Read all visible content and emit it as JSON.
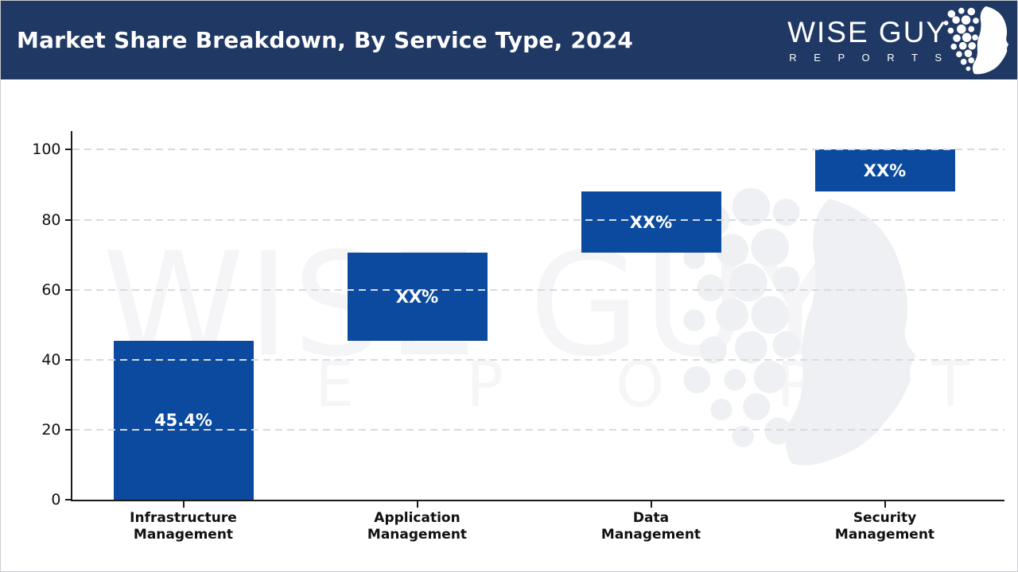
{
  "header": {
    "title": "Market Share Breakdown, By Service Type, 2024",
    "brand": {
      "name": "WISE GUY",
      "sub": "R E P O R T S"
    }
  },
  "watermark": {
    "line1": "WISE GUY",
    "line2": "R E P O R T S"
  },
  "chart_data": {
    "type": "bar",
    "subtype": "waterfall",
    "title": "Market Share Breakdown, By Service Type, 2024",
    "xlabel": "",
    "ylabel": "",
    "categories": [
      "Infrastructure Management",
      "Application Management",
      "Data Management",
      "Security Management"
    ],
    "segments": [
      {
        "category": "Infrastructure Management",
        "start": 0,
        "end": 45.4,
        "label": "45.4%"
      },
      {
        "category": "Application Management",
        "start": 45.4,
        "end": 70.5,
        "label": "XX%"
      },
      {
        "category": "Data Management",
        "start": 70.5,
        "end": 88.0,
        "label": "XX%"
      },
      {
        "category": "Security Management",
        "start": 88.0,
        "end": 100.0,
        "label": "XX%"
      }
    ],
    "yticks": [
      0,
      20,
      40,
      60,
      80,
      100
    ],
    "ylim": [
      0,
      104
    ],
    "grid": "horizontal dashed, drawn above bars",
    "legend": "none",
    "bar_color": "#0B4A9E",
    "bar_label_color": "#ffffff",
    "header_color": "#1F3864",
    "gridline_color": "#d8dade",
    "axis_color": "#1a1a1a"
  }
}
